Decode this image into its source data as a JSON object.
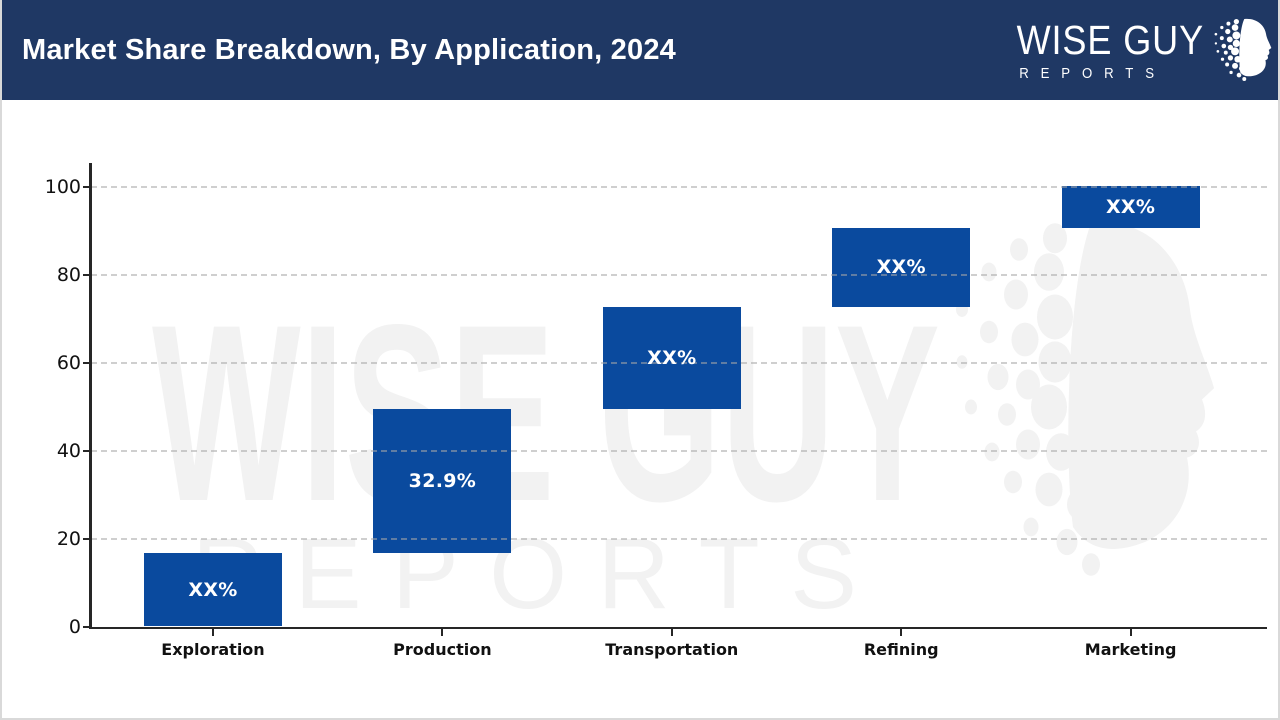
{
  "header": {
    "title": "Market Share Breakdown, By Application, 2024",
    "bg_color": "#1F3864",
    "brand": {
      "name": "WISE GUY",
      "subtitle": "REPORTS"
    }
  },
  "watermark": {
    "line1": "WISE GUY",
    "line2": "REPORTS"
  },
  "chart_data": {
    "type": "bar",
    "subtype": "waterfall-floating-bars",
    "title": "Market Share Breakdown, By Application, 2024",
    "categories": [
      "Exploration",
      "Production",
      "Transportation",
      "Refining",
      "Marketing"
    ],
    "bars": [
      {
        "category": "Exploration",
        "start": 0,
        "end": 16.6,
        "label": "XX%"
      },
      {
        "category": "Production",
        "start": 16.6,
        "end": 49.5,
        "label": "32.9%"
      },
      {
        "category": "Transportation",
        "start": 49.5,
        "end": 72.7,
        "label": "XX%"
      },
      {
        "category": "Refining",
        "start": 72.7,
        "end": 90.5,
        "label": "XX%"
      },
      {
        "category": "Marketing",
        "start": 90.5,
        "end": 100.1,
        "label": "XX%"
      }
    ],
    "y_ticks": [
      0,
      20,
      40,
      60,
      80,
      100
    ],
    "ylim": [
      0,
      105
    ],
    "xlabel": "",
    "ylabel": "",
    "bar_color": "#0A4A9E",
    "bar_label_color": "#FFFFFF",
    "grid": "dashed-horizontal, semi-transparent, drawn over bars",
    "legend": "none"
  }
}
